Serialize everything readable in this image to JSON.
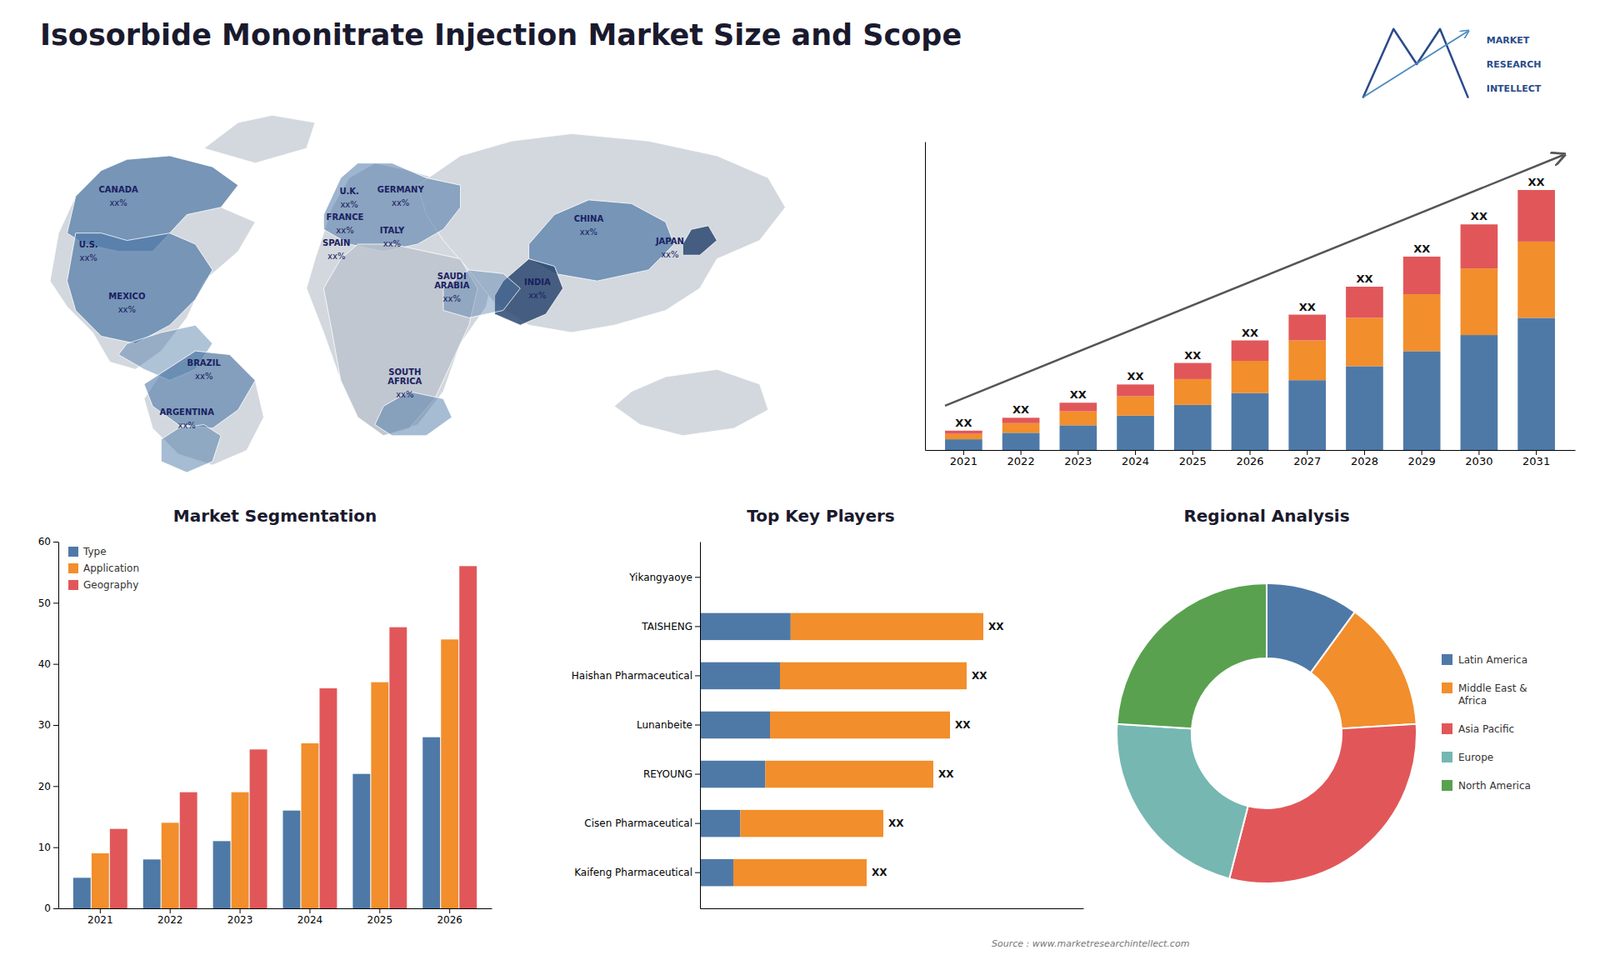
{
  "title": "Isosorbide Mononitrate Injection Market Size and Scope",
  "annotations": [
    "Source : www.marketresearchintellect.com",
    "MARKET",
    "RESEARCH",
    "INTELLECT"
  ],
  "chart_data": [
    {
      "type": "map",
      "categories": [
        "CANADA",
        "U.S.",
        "MEXICO",
        "BRAZIL",
        "ARGENTINA",
        "U.K.",
        "FRANCE",
        "SPAIN",
        "GERMANY",
        "ITALY",
        "SAUDI\nARABIA",
        "SOUTH\nAFRICA",
        "CHINA",
        "INDIA",
        "JAPAN"
      ],
      "annotations": [
        "xx%",
        "xx%",
        "xx%",
        "xx%",
        "xx%",
        "xx%",
        "xx%",
        "xx%",
        "xx%",
        "xx%",
        "xx%",
        "xx%",
        "xx%",
        "xx%",
        "xx%"
      ]
    },
    {
      "type": "bar",
      "stacked": true,
      "categories": [
        "2021",
        "2022",
        "2023",
        "2024",
        "2025",
        "2026",
        "2027",
        "2028",
        "2029",
        "2030",
        "2031"
      ],
      "series": [
        {
          "values": [
            1.0,
            1.6,
            2.3,
            3.2,
            4.2,
            5.3,
            6.5,
            7.8,
            9.2,
            10.7,
            12.3
          ]
        },
        {
          "values": [
            0.5,
            0.9,
            1.3,
            1.8,
            2.4,
            3.0,
            3.7,
            4.5,
            5.3,
            6.2,
            7.1
          ]
        },
        {
          "values": [
            0.3,
            0.5,
            0.8,
            1.1,
            1.5,
            1.9,
            2.4,
            2.9,
            3.5,
            4.1,
            4.8
          ]
        }
      ],
      "annotations": [
        "XX",
        "XX",
        "XX",
        "XX",
        "XX",
        "XX",
        "XX",
        "XX",
        "XX",
        "XX",
        "XX"
      ],
      "ylim": [
        0,
        28.7
      ],
      "yticks": [],
      "tick_labels": "x",
      "grid": false
    },
    {
      "type": "bar",
      "title": "Market Segmentation",
      "categories": [
        "2021",
        "2022",
        "2023",
        "2024",
        "2025",
        "2026"
      ],
      "series": [
        {
          "name": "Type",
          "values": [
            5,
            8,
            11,
            16,
            22,
            28
          ]
        },
        {
          "name": "Application",
          "values": [
            9,
            14,
            19,
            27,
            37,
            44
          ]
        },
        {
          "name": "Geography",
          "values": [
            13,
            19,
            26,
            36,
            46,
            56
          ]
        }
      ],
      "ylim": [
        0,
        60
      ],
      "yticks": [
        0,
        10,
        20,
        30,
        40,
        50,
        60
      ],
      "legend": "upper left",
      "grid": false
    },
    {
      "type": "bar",
      "title": "Top Key Players",
      "orientation": "horizontal",
      "stacked": true,
      "categories": [
        "Yikangyaoye",
        "TAISHENG",
        "Haishan Pharmaceutical",
        "Lunanbeite",
        "REYOUNG",
        "Cisen Pharmaceutical",
        "Kaifeng Pharmaceutical"
      ],
      "series": [
        {
          "values": [
            0,
            2.72,
            2.4,
            2.1,
            1.96,
            1.21,
            1.0
          ]
        },
        {
          "values": [
            0,
            5.78,
            5.6,
            5.4,
            5.04,
            4.29,
            4.0
          ]
        }
      ],
      "annotations": [
        null,
        "XX",
        "XX",
        "XX",
        "XX",
        "XX",
        "XX"
      ],
      "xlim": [
        0,
        11.5
      ],
      "xticks": [],
      "tick_labels": "y",
      "grid": false
    },
    {
      "type": "pie",
      "title": "Regional Analysis",
      "categories": [
        "Latin America",
        "Middle East &\nAfrica",
        "Asia Pacific",
        "Europe",
        "North America"
      ],
      "values": [
        0.1,
        0.14,
        0.3,
        0.22,
        0.24
      ],
      "legend": "right"
    }
  ]
}
